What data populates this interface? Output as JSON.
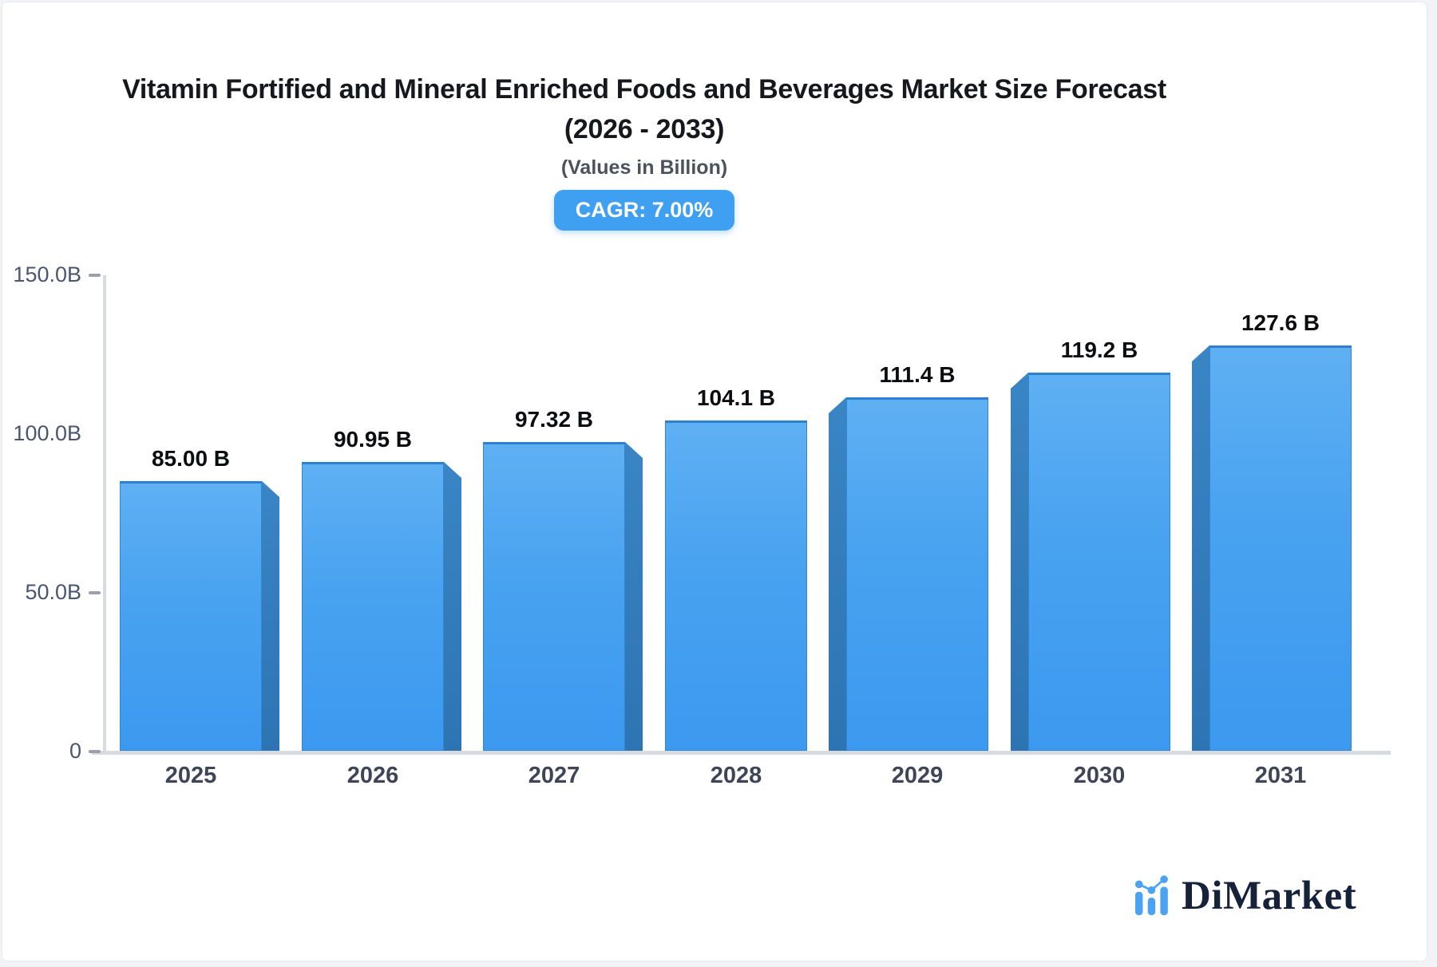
{
  "header": {
    "title_line1": "Vitamin Fortified and Mineral Enriched Foods and Beverages Market Size Forecast",
    "title_line2": "(2026 - 2033)",
    "subtitle": "(Values in Billion)",
    "badge": "CAGR: 7.00%"
  },
  "logo": {
    "text": "DiMarket",
    "icon": "bar-chart-trend-icon",
    "icon_color": "#4aa3f2",
    "text_color": "#15223a"
  },
  "chart_data": {
    "type": "bar",
    "title": "Vitamin Fortified and Mineral Enriched Foods and Beverages Market Size Forecast (2026 - 2033)",
    "subtitle": "(Values in Billion)",
    "cagr_label": "CAGR: 7.00%",
    "cagr_percent": 7.0,
    "categories": [
      "2025",
      "2026",
      "2027",
      "2028",
      "2029",
      "2030",
      "2031"
    ],
    "values": [
      85.0,
      90.95,
      97.32,
      104.1,
      111.4,
      119.2,
      127.6
    ],
    "value_labels": [
      "85.00 B",
      "90.95 B",
      "97.32 B",
      "104.1 B",
      "111.4 B",
      "119.2 B",
      "127.6 B"
    ],
    "unit": "Billion (B)",
    "ylim": [
      0,
      150
    ],
    "yticks": [
      {
        "value": 0,
        "label": "0",
        "dash": true
      },
      {
        "value": 50,
        "label": "50.0B",
        "dash": true
      },
      {
        "value": 100,
        "label": "100.0B",
        "dash": false
      },
      {
        "value": 150,
        "label": "150.0B",
        "dash": true
      }
    ],
    "grid": false,
    "legend": false,
    "bar_color": "#459ff0",
    "bar_side_color": "#2e77b6",
    "axis_color": "#d7dade",
    "effect_3d": "bars left of center extrude right, bars right of center extrude left"
  }
}
